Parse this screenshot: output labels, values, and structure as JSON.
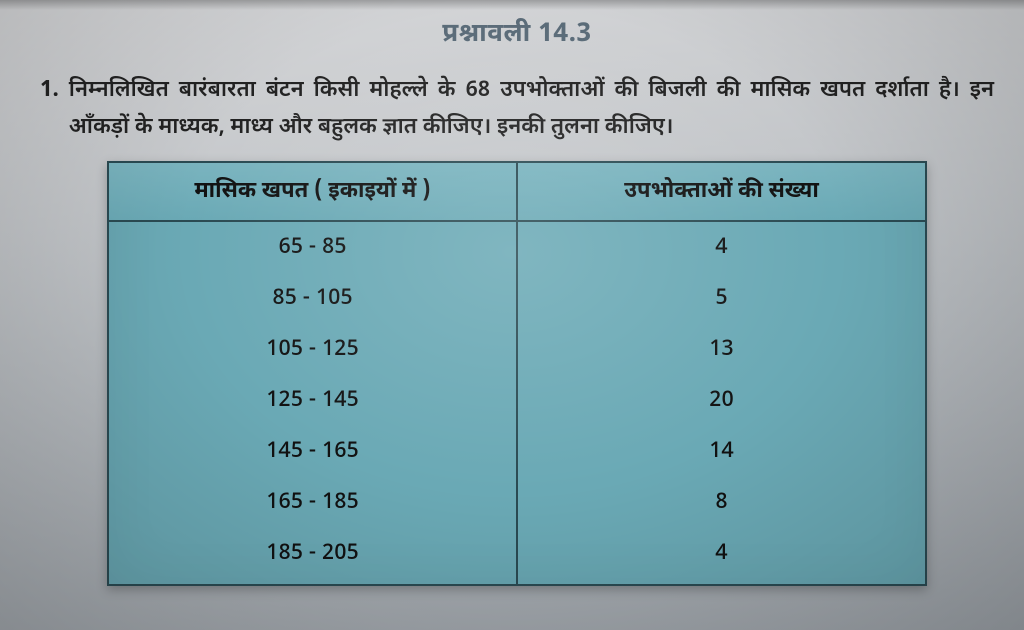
{
  "heading": "प्रश्नावली 14.3",
  "question": {
    "number": "1.",
    "text": "निम्नलिखित बारंबारता बंटन किसी मोहल्ले के 68 उपभोक्ताओं की बिजली की मासिक खपत दर्शाता है। इन आँकड़ों के माध्यक, माध्य और बहुलक ज्ञात कीजिए। इनकी तुलना कीजिए।"
  },
  "table": {
    "type": "table",
    "columns": [
      "मासिक खपत ( इकाइयों में )",
      "उपभोक्ताओं की संख्या"
    ],
    "rows": [
      [
        "65 - 85",
        "4"
      ],
      [
        "85 - 105",
        "5"
      ],
      [
        "105 - 125",
        "13"
      ],
      [
        "125 - 145",
        "20"
      ],
      [
        "145 - 165",
        "14"
      ],
      [
        "165 - 185",
        "8"
      ],
      [
        "185 - 205",
        "4"
      ]
    ],
    "background_color": "#6aa9b5",
    "border_color": "#2a4a52",
    "header_fontsize": 22,
    "cell_fontsize": 22,
    "col_widths_pct": [
      50,
      50
    ]
  },
  "style": {
    "heading_color": "#5a6b78",
    "heading_fontsize": 26,
    "question_fontsize": 22,
    "page_bg_gradient": [
      "#d6d7d9",
      "#b8bcc0",
      "#9da3a9"
    ]
  }
}
